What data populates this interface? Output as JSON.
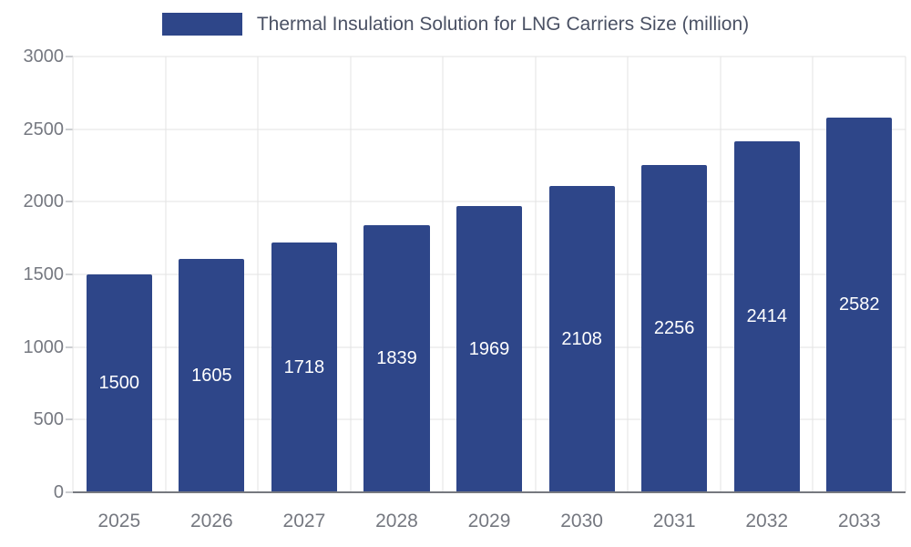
{
  "legend": {
    "label": "Thermal Insulation Solution for LNG Carriers Size (million)"
  },
  "chart_data": {
    "type": "bar",
    "title": "Thermal Insulation Solution for LNG Carriers Size (million)",
    "categories": [
      "2025",
      "2026",
      "2027",
      "2028",
      "2029",
      "2030",
      "2031",
      "2032",
      "2033"
    ],
    "values": [
      1500,
      1605,
      1718,
      1839,
      1969,
      2108,
      2256,
      2414,
      2582
    ],
    "xlabel": "",
    "ylabel": "",
    "ylim": [
      0,
      3000
    ],
    "yticks": [
      0,
      500,
      1000,
      1500,
      2000,
      2500,
      3000
    ],
    "grid": true,
    "legend_position": "top",
    "bar_color": "#2e4689",
    "value_label_color": "#ffffff",
    "value_labels_inside": true
  }
}
